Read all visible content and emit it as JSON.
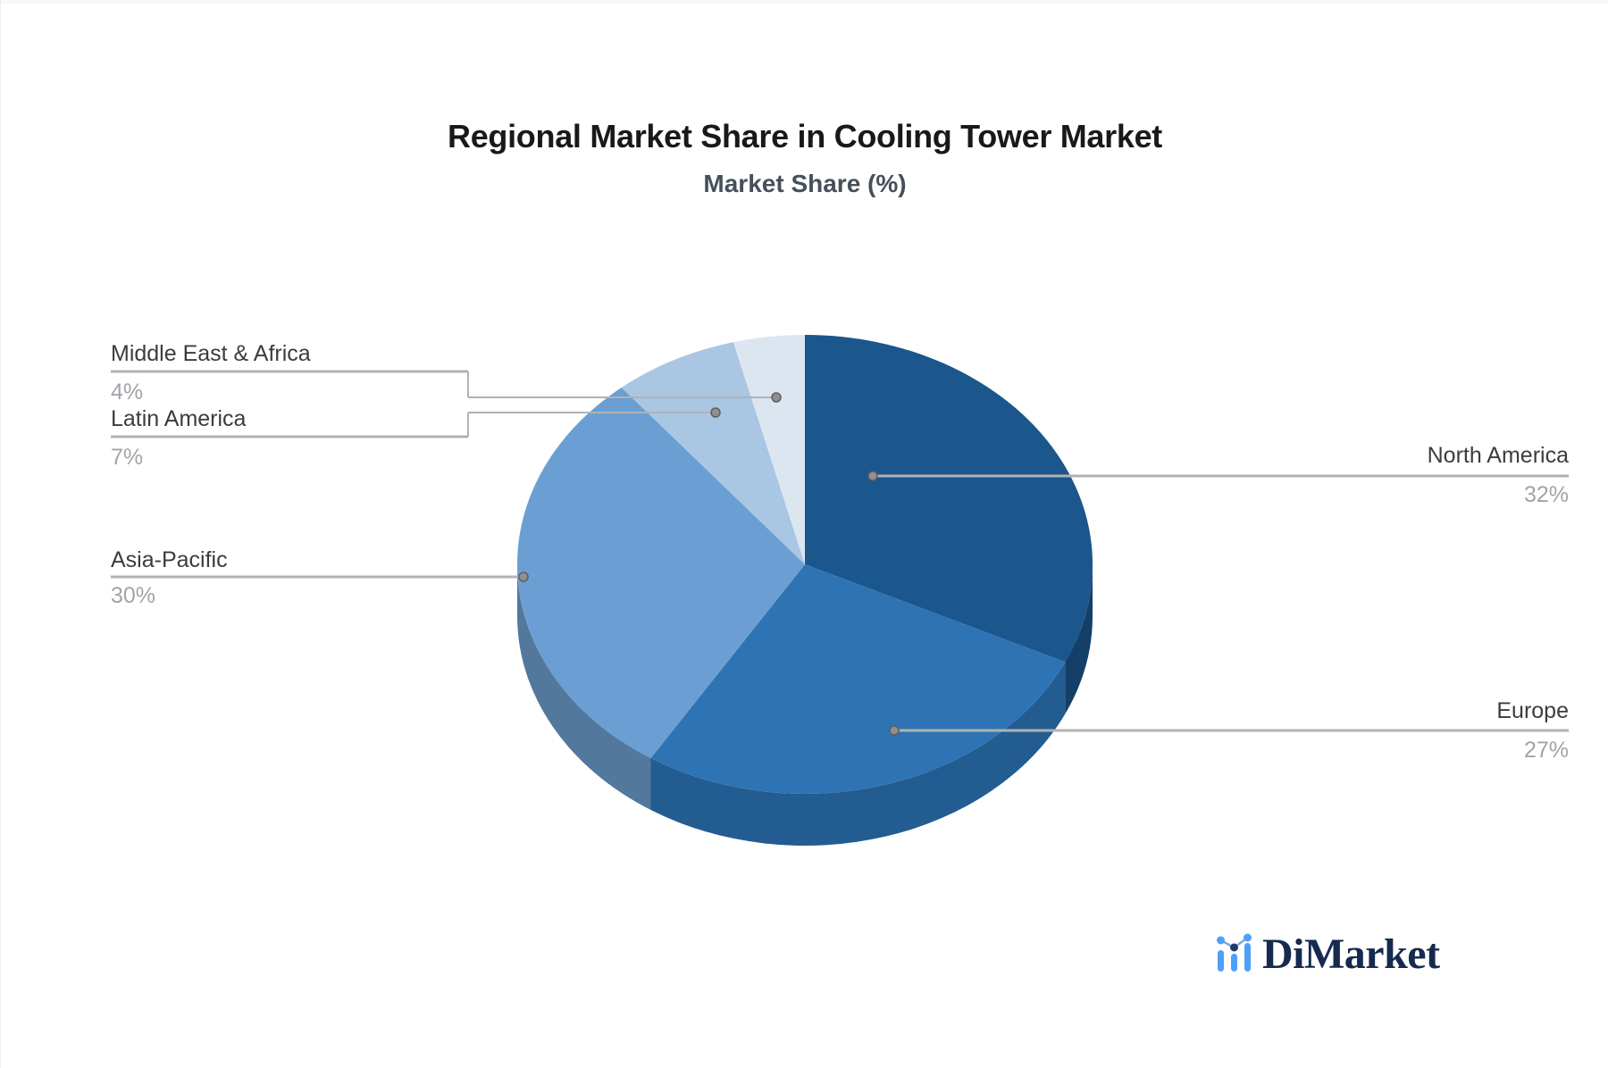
{
  "title": "Regional Market Share in Cooling Tower Market",
  "subtitle": "Market Share (%)",
  "chart_data": {
    "type": "pie",
    "style": "3d",
    "title": "Regional Market Share in Cooling Tower Market",
    "subtitle": "Market Share (%)",
    "unit": "%",
    "direction": "clockwise",
    "start_angle_deg": 0,
    "legend_position": "callout-labels",
    "categories": [
      "North America",
      "Europe",
      "Asia-Pacific",
      "Latin America",
      "Middle East & Africa"
    ],
    "values": [
      32,
      27,
      30,
      7,
      4
    ],
    "slice_ids": [
      "north-america",
      "europe",
      "asia-pacific",
      "latin-america",
      "middle-east-africa"
    ],
    "colors": [
      "#1B568C",
      "#2E74B4",
      "#6B9FD3",
      "#A9C6E3",
      "#DCE6F1"
    ],
    "side_colors": [
      "#133F68",
      "#235C90",
      "#53789E",
      "#7E9AB8",
      "#B8C6D8"
    ]
  },
  "callouts": {
    "mea": {
      "label": "Middle East & Africa",
      "value": "4%"
    },
    "latam": {
      "label": "Latin America",
      "value": "7%"
    },
    "asia": {
      "label": "Asia-Pacific",
      "value": "30%"
    },
    "na": {
      "label": "North America",
      "value": "32%"
    },
    "europe": {
      "label": "Europe",
      "value": "27%"
    }
  },
  "styles": {
    "line_color": "#b0b2b5",
    "dot_fill": "#909090",
    "dot_ring": "#5e5e5e",
    "label_color": "#3c3c3c",
    "value_color": "#a0a4a8"
  },
  "logo": {
    "text": "DiMarket",
    "icon": "bar-line-chart-logo-icon",
    "icon_bar_color": "#4da0f7",
    "icon_dark_dot_color": "#1d3b66",
    "text_color": "#152a4e"
  }
}
